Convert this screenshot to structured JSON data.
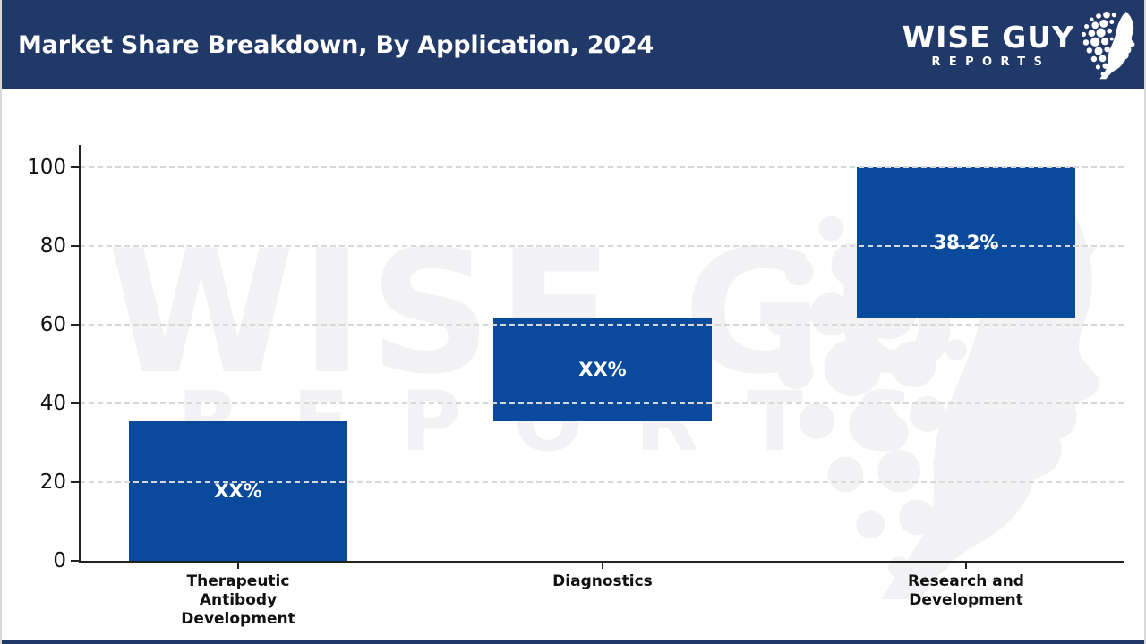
{
  "header": {
    "title": "Market Share Breakdown, By Application, 2024",
    "brand": {
      "name": "WISE GUY",
      "subtitle": "REPORTS"
    }
  },
  "watermark": {
    "name": "WISE GUY",
    "subtitle": "REPORTS"
  },
  "colors": {
    "header_bg": "#213968",
    "accent_bar": "#213968",
    "bar_fill": "#0a4a9c",
    "bar_label": "#ffffff",
    "grid_line": "#d8d8d8",
    "axis_line": "#222222",
    "tick_label": "#111111",
    "watermark": "#f2f2f4"
  },
  "chart_data": {
    "type": "bar",
    "subtype": "waterfall",
    "title": "Market Share Breakdown, By Application, 2024",
    "categories": [
      "Therapeutic Antibody Development",
      "Diagnostics",
      "Research and Development"
    ],
    "category_lines": [
      [
        "Therapeutic",
        "Antibody",
        "Development"
      ],
      [
        "Diagnostics"
      ],
      [
        "Research and",
        "Development"
      ]
    ],
    "segments": [
      {
        "category": "Therapeutic Antibody Development",
        "label": "XX%",
        "start": 0,
        "end": 35.4
      },
      {
        "category": "Diagnostics",
        "label": "XX%",
        "start": 35.4,
        "end": 61.8
      },
      {
        "category": "Research and Development",
        "label": "38.2%",
        "start": 61.8,
        "end": 100
      }
    ],
    "yticks": [
      0,
      20,
      40,
      60,
      80,
      100
    ],
    "ylim": [
      0,
      105
    ],
    "xlabel": "",
    "ylabel": "",
    "grid": "horizontal-dashed",
    "legend": "none"
  }
}
